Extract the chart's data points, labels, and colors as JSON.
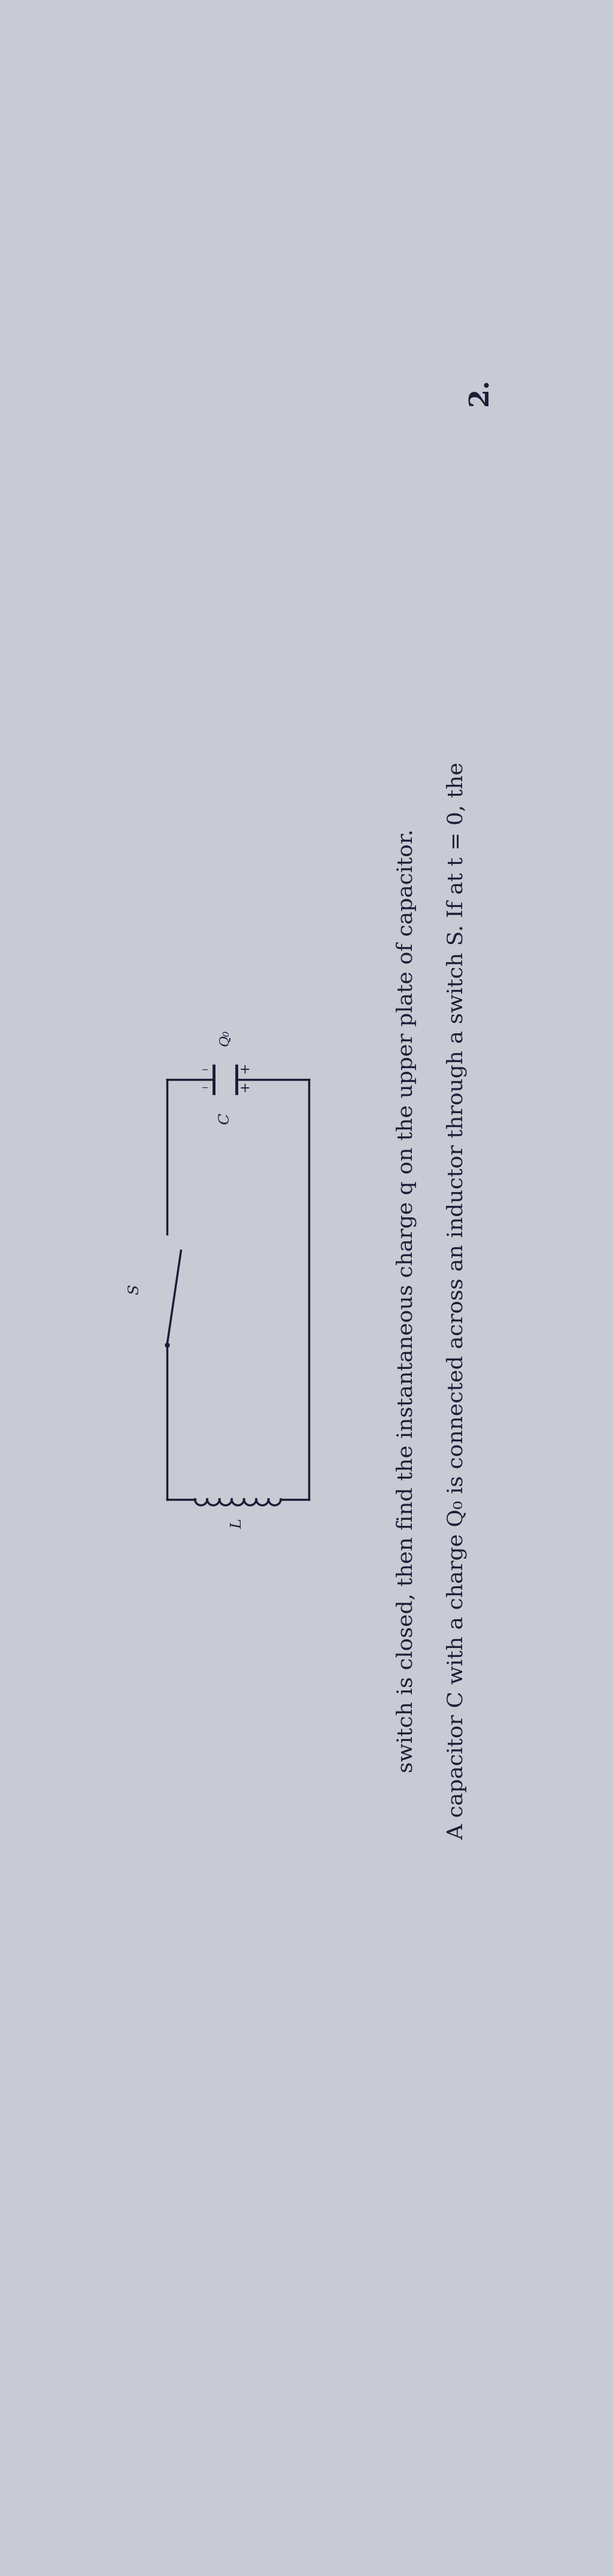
{
  "background_color": "#c8cad4",
  "text_color": "#1c1c35",
  "figure_width": 10.24,
  "figure_height": 43.0,
  "problem_number": "2.",
  "line1": "A capacitor C with a charge Q₀ is connected across an inductor through a switch S. If at t = 0, the",
  "line2": "switch is closed, then find the instantaneous charge q on the upper plate of capacitor.",
  "label_C": "C",
  "label_Q0": "Q₀",
  "label_S": "S",
  "label_L": "L",
  "label_plus": "+",
  "font_size_number": 32,
  "font_size_text": 26,
  "font_size_circuit": 18
}
